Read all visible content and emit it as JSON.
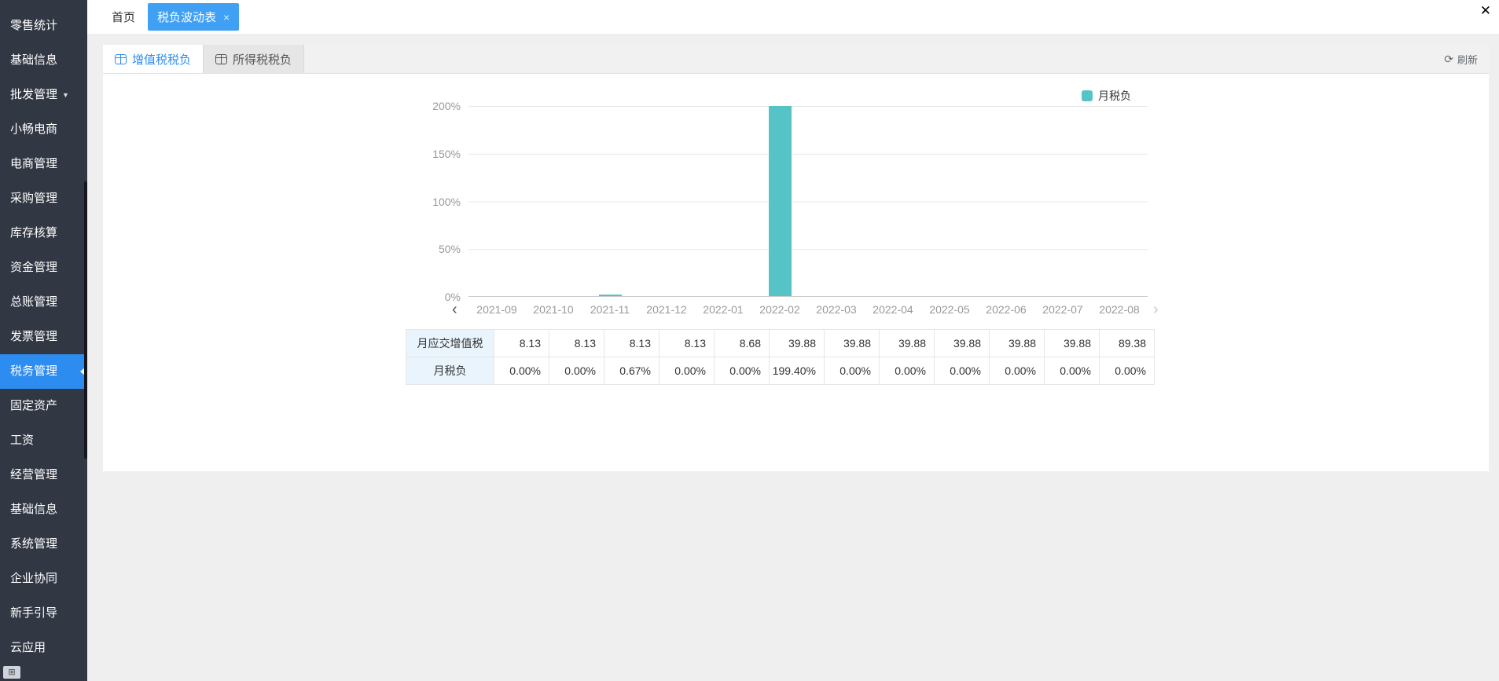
{
  "icons": {
    "window_close": "✕",
    "tab_close": "×",
    "caret_down": "▼",
    "refresh": "⟳",
    "chevron_left": "‹",
    "chevron_right": "›",
    "sidebar_toggle": "⊞"
  },
  "sidebar": {
    "items": [
      {
        "label": "零售统计"
      },
      {
        "label": "基础信息"
      },
      {
        "label": "批发管理",
        "caret": true
      },
      {
        "label": "小畅电商"
      },
      {
        "label": "电商管理"
      },
      {
        "label": "采购管理"
      },
      {
        "label": "库存核算"
      },
      {
        "label": "资金管理"
      },
      {
        "label": "总账管理"
      },
      {
        "label": "发票管理"
      },
      {
        "label": "税务管理",
        "active": true
      },
      {
        "label": "固定资产"
      },
      {
        "label": "工资"
      },
      {
        "label": "经营管理"
      },
      {
        "label": "基础信息"
      },
      {
        "label": "系统管理"
      },
      {
        "label": "企业协同"
      },
      {
        "label": "新手引导"
      },
      {
        "label": "云应用"
      }
    ]
  },
  "tabs": {
    "home_label": "首页",
    "active_label": "税负波动表"
  },
  "content": {
    "inner_tabs": [
      {
        "label": "增值税税负",
        "active": true
      },
      {
        "label": "所得税税负",
        "active": false
      }
    ],
    "refresh_label": "刷新"
  },
  "chart_data": {
    "type": "bar",
    "title": "",
    "categories": [
      "2021-09",
      "2021-10",
      "2021-11",
      "2021-12",
      "2022-01",
      "2022-02",
      "2022-03",
      "2022-04",
      "2022-05",
      "2022-06",
      "2022-07",
      "2022-08"
    ],
    "series": [
      {
        "name": "月税负",
        "values": [
          0,
          0,
          0.67,
          0,
          0,
          199.4,
          0,
          0,
          0,
          0,
          0,
          0
        ]
      }
    ],
    "y_ticks": [
      "0%",
      "50%",
      "100%",
      "150%",
      "200%"
    ],
    "ylim": [
      0,
      200
    ],
    "xlabel": "",
    "ylabel": "",
    "grid": true,
    "legend_position": "top-right",
    "bar_color": "#56c4c7"
  },
  "table": {
    "rows": [
      {
        "label": "月应交增值税",
        "values": [
          "8.13",
          "8.13",
          "8.13",
          "8.13",
          "8.68",
          "39.88",
          "39.88",
          "39.88",
          "39.88",
          "39.88",
          "39.88",
          "89.38"
        ]
      },
      {
        "label": "月税负",
        "values": [
          "0.00%",
          "0.00%",
          "0.67%",
          "0.00%",
          "0.00%",
          "199.40%",
          "0.00%",
          "0.00%",
          "0.00%",
          "0.00%",
          "0.00%",
          "0.00%"
        ]
      }
    ]
  }
}
